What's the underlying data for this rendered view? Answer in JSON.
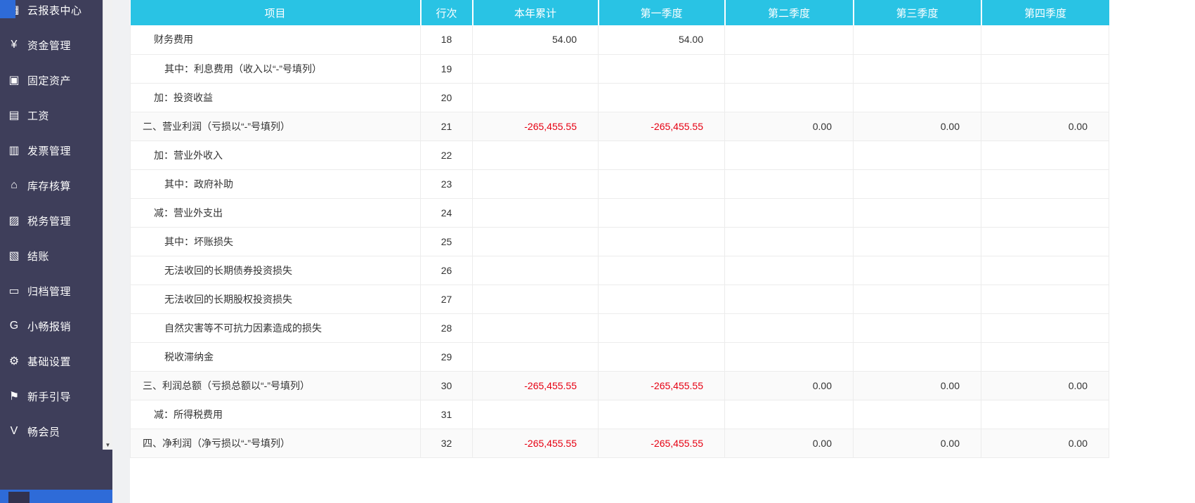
{
  "colors": {
    "sidebar-bg": "#3e3e5a",
    "header-bg": "#29c3e4",
    "accent-blue": "#2e6bd8",
    "scrollbar-bg": "#f1f1f1",
    "negative": "#e60012"
  },
  "sidebar": {
    "items": [
      {
        "id": "cloud-report-center",
        "label": "云报表中心",
        "icon": "report-chart-icon"
      },
      {
        "id": "funds-management",
        "label": "资金管理",
        "icon": "money-icon"
      },
      {
        "id": "fixed-assets",
        "label": "固定资产",
        "icon": "building-icon"
      },
      {
        "id": "salary",
        "label": "工资",
        "icon": "salary-card-icon"
      },
      {
        "id": "invoice-management",
        "label": "发票管理",
        "icon": "invoice-icon"
      },
      {
        "id": "inventory-accounting",
        "label": "库存核算",
        "icon": "warehouse-icon"
      },
      {
        "id": "tax-management",
        "label": "税务管理",
        "icon": "tax-icon"
      },
      {
        "id": "closing",
        "label": "结账",
        "icon": "ledger-icon"
      },
      {
        "id": "archive-management",
        "label": "归档管理",
        "icon": "archive-icon"
      },
      {
        "id": "xiaochang-expense",
        "label": "小畅报销",
        "icon": "reimburse-icon"
      },
      {
        "id": "basic-settings",
        "label": "基础设置",
        "icon": "gear-icon"
      },
      {
        "id": "beginner-guide",
        "label": "新手引导",
        "icon": "guide-flag-icon"
      },
      {
        "id": "chang-member",
        "label": "畅会员",
        "icon": "member-icon"
      }
    ],
    "scroll_down_arrow": "▼"
  },
  "table": {
    "column_ids": [
      "item",
      "line",
      "ytd",
      "q1",
      "q2",
      "q3",
      "q4"
    ],
    "columns": [
      "项目",
      "行次",
      "本年累计",
      "第一季度",
      "第二季度",
      "第三季度",
      "第四季度"
    ],
    "rows": [
      {
        "indent": 1,
        "item": "财务费用",
        "line": "18",
        "values": [
          "54.00",
          "54.00",
          "",
          "",
          ""
        ],
        "shaded": false
      },
      {
        "indent": 2,
        "item": "其中：利息费用（收入以“-”号填列）",
        "line": "19",
        "values": [
          "",
          "",
          "",
          "",
          ""
        ],
        "shaded": false
      },
      {
        "indent": 1,
        "item": "加：投资收益",
        "line": "20",
        "values": [
          "",
          "",
          "",
          "",
          ""
        ],
        "shaded": false
      },
      {
        "indent": 0,
        "item": "二、营业利润（亏损以“-”号填列）",
        "line": "21",
        "values": [
          "-265,455.55",
          "-265,455.55",
          "0.00",
          "0.00",
          "0.00"
        ],
        "shaded": true
      },
      {
        "indent": 1,
        "item": "加：营业外收入",
        "line": "22",
        "values": [
          "",
          "",
          "",
          "",
          ""
        ],
        "shaded": false
      },
      {
        "indent": 2,
        "item": "其中：政府补助",
        "line": "23",
        "values": [
          "",
          "",
          "",
          "",
          ""
        ],
        "shaded": false
      },
      {
        "indent": 1,
        "item": "减：营业外支出",
        "line": "24",
        "values": [
          "",
          "",
          "",
          "",
          ""
        ],
        "shaded": false
      },
      {
        "indent": 2,
        "item": "其中：坏账损失",
        "line": "25",
        "values": [
          "",
          "",
          "",
          "",
          ""
        ],
        "shaded": false
      },
      {
        "indent": 2,
        "item": "无法收回的长期债券投资损失",
        "line": "26",
        "values": [
          "",
          "",
          "",
          "",
          ""
        ],
        "shaded": false
      },
      {
        "indent": 2,
        "item": "无法收回的长期股权投资损失",
        "line": "27",
        "values": [
          "",
          "",
          "",
          "",
          ""
        ],
        "shaded": false
      },
      {
        "indent": 2,
        "item": "自然灾害等不可抗力因素造成的损失",
        "line": "28",
        "values": [
          "",
          "",
          "",
          "",
          ""
        ],
        "shaded": false
      },
      {
        "indent": 2,
        "item": "税收滞纳金",
        "line": "29",
        "values": [
          "",
          "",
          "",
          "",
          ""
        ],
        "shaded": false
      },
      {
        "indent": 0,
        "item": "三、利润总额（亏损总额以“-”号填列）",
        "line": "30",
        "values": [
          "-265,455.55",
          "-265,455.55",
          "0.00",
          "0.00",
          "0.00"
        ],
        "shaded": true
      },
      {
        "indent": 1,
        "item": "减：所得税费用",
        "line": "31",
        "values": [
          "",
          "",
          "",
          "",
          ""
        ],
        "shaded": false
      },
      {
        "indent": 0,
        "item": "四、净利润（净亏损以“-”号填列）",
        "line": "32",
        "values": [
          "-265,455.55",
          "-265,455.55",
          "0.00",
          "0.00",
          "0.00"
        ],
        "shaded": true
      }
    ]
  }
}
